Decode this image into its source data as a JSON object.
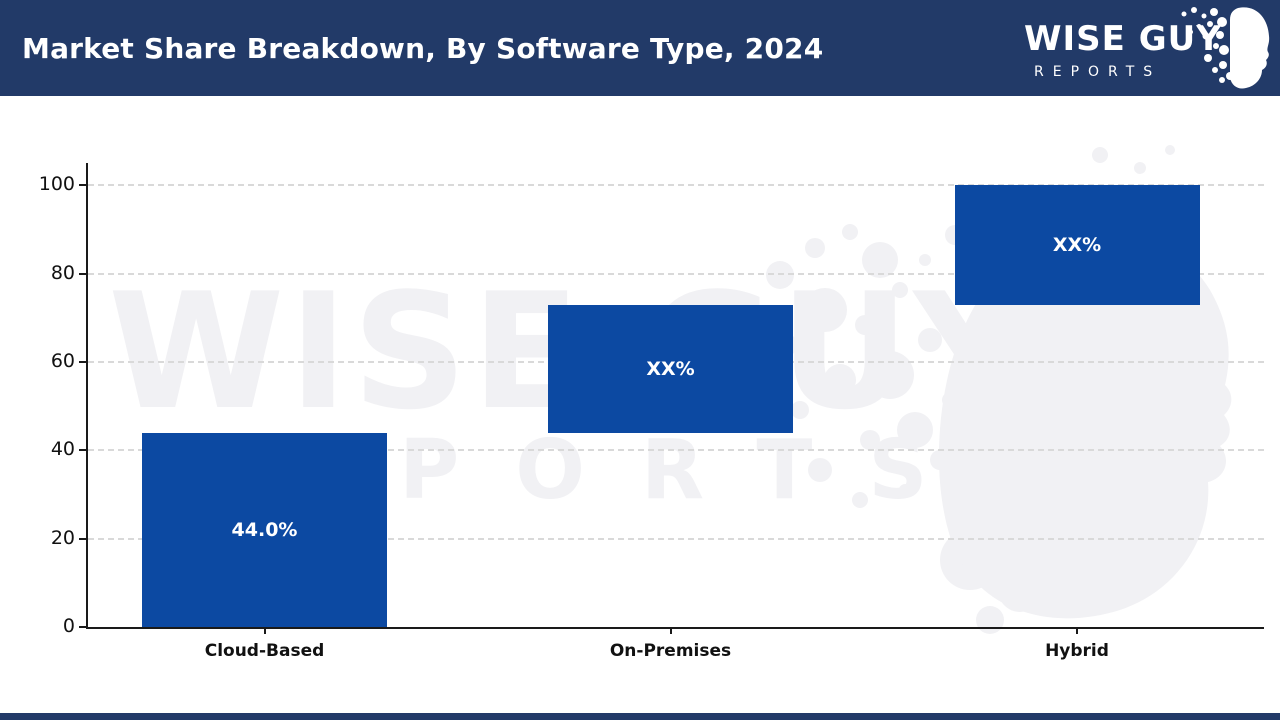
{
  "header": {
    "title": "Market Share Breakdown, By Software Type, 2024",
    "logo": {
      "brand_line1": "WISE GUY",
      "brand_line2": "REPORTS"
    }
  },
  "watermark": {
    "line1": "WISE GUY",
    "line2": "REPORTS"
  },
  "chart_data": {
    "type": "bar",
    "subtype": "waterfall-stepped-segments",
    "title": "Market Share Breakdown, By Software Type, 2024",
    "categories": [
      "Cloud-Based",
      "On-Premises",
      "Hybrid"
    ],
    "bars": [
      {
        "category": "Cloud-Based",
        "start": 0,
        "end": 44,
        "value_label": "44.0%"
      },
      {
        "category": "On-Premises",
        "start": 44,
        "end": 73,
        "value_label": "XX%"
      },
      {
        "category": "Hybrid",
        "start": 73,
        "end": 100,
        "value_label": "XX%"
      }
    ],
    "ylim": [
      0,
      100
    ],
    "yticks": [
      0,
      20,
      40,
      60,
      80,
      100
    ],
    "xlabel": "",
    "ylabel": "",
    "grid": "horizontal-dashed",
    "legend": "none"
  },
  "colors": {
    "header_bg": "#223a68",
    "footer_bg": "#223a68",
    "bar_blue": "#0c49a2",
    "bar_label": "#ffffff",
    "gridline": "#d9d9d9",
    "axis": "#1a1a1a",
    "watermark": "#f1f1f4"
  }
}
